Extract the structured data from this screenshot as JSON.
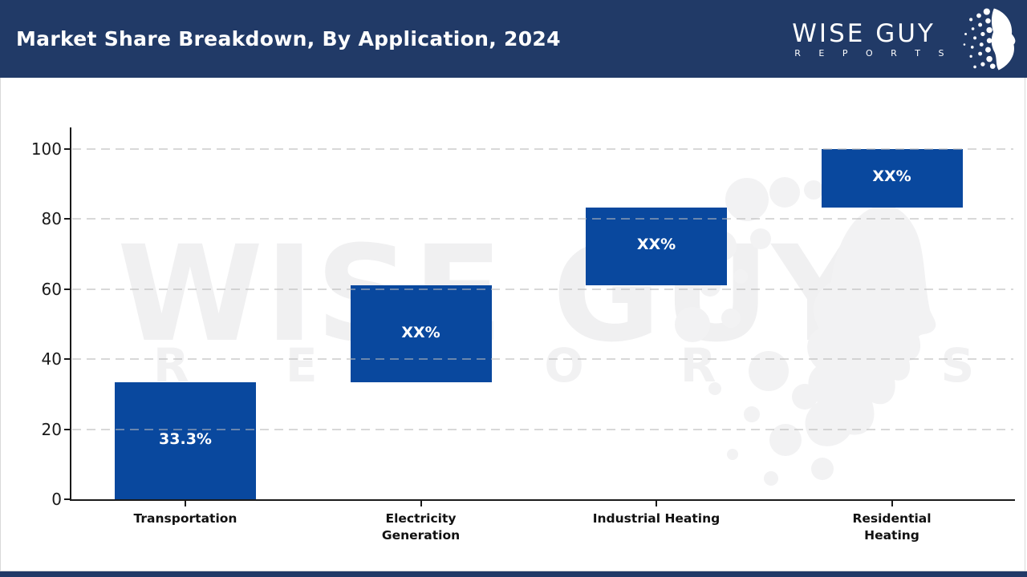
{
  "header": {
    "title": "Market Share Breakdown, By Application, 2024",
    "bg_color": "#213a67",
    "logo_line1": "WISE GUY",
    "logo_line2": "R E P O R T S"
  },
  "watermark": {
    "line1": "WISE GUY",
    "line2": "R E P O R T S"
  },
  "chart_data": {
    "type": "bar",
    "subtype": "waterfall",
    "title": "Market Share Breakdown, By Application, 2024",
    "categories": [
      "Transportation",
      "Electricity\nGeneration",
      "Industrial Heating",
      "Residential\nHeating"
    ],
    "series": [
      {
        "name": "Market Share (%)",
        "starts": [
          0,
          33.3,
          61.1,
          83.4
        ],
        "ends": [
          33.3,
          61.1,
          83.4,
          100
        ]
      }
    ],
    "bar_labels": [
      "33.3%",
      "XX%",
      "XX%",
      "XX%"
    ],
    "xlabel": "",
    "ylabel": "",
    "ylim": [
      0,
      100
    ],
    "yticks": [
      0,
      20,
      40,
      60,
      80,
      100
    ],
    "grid": "horizontal dashed",
    "legend": "none",
    "bar_color": "#09489e",
    "bar_label_color": "#ffffff"
  }
}
